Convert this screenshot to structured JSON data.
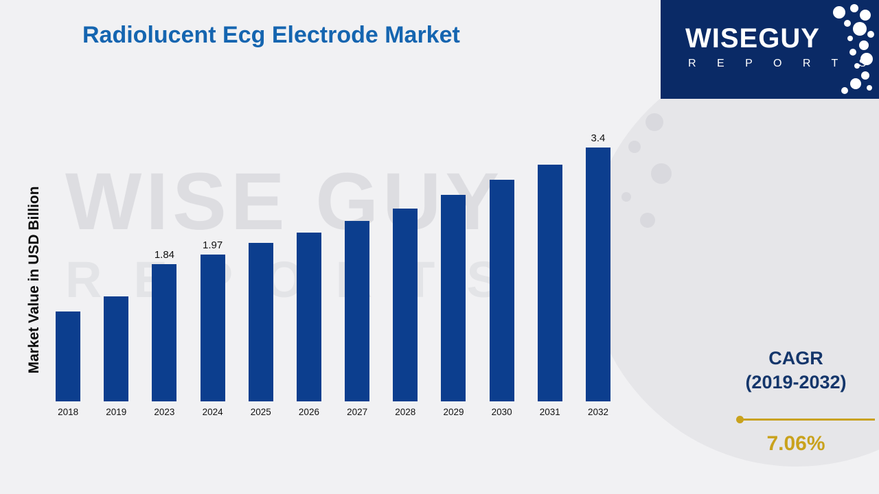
{
  "title": "Radiolucent Ecg Electrode Market",
  "watermark": {
    "line1": "WISE GUY",
    "line2": "REPORTS"
  },
  "logo": {
    "line1": "WISEGUY",
    "line2": "R E P O R T S"
  },
  "cagr": {
    "label": "CAGR",
    "range": "(2019-2032)",
    "value": "7.06%"
  },
  "colors": {
    "bar": "#0c3e8e",
    "title": "#1565b0",
    "cagr_navy": "#14366b",
    "gold": "#c9a21d",
    "logo_bg": "#0a2a66"
  },
  "chart_data": {
    "type": "bar",
    "title": "Radiolucent Ecg Electrode Market",
    "xlabel": "",
    "ylabel": "Market Value in USD Billion",
    "categories": [
      "2018",
      "2019",
      "2023",
      "2024",
      "2025",
      "2026",
      "2027",
      "2028",
      "2029",
      "2030",
      "2031",
      "2032"
    ],
    "values": [
      1.2,
      1.41,
      1.84,
      1.97,
      2.12,
      2.26,
      2.42,
      2.58,
      2.77,
      2.97,
      3.17,
      3.4
    ],
    "labels": [
      "",
      "",
      "1.84",
      "1.97",
      "",
      "",
      "",
      "",
      "",
      "",
      "",
      "3.4"
    ],
    "ylim": [
      0,
      3.6
    ],
    "grid": false,
    "legend": "none",
    "bar_color": "#0c3e8e"
  }
}
